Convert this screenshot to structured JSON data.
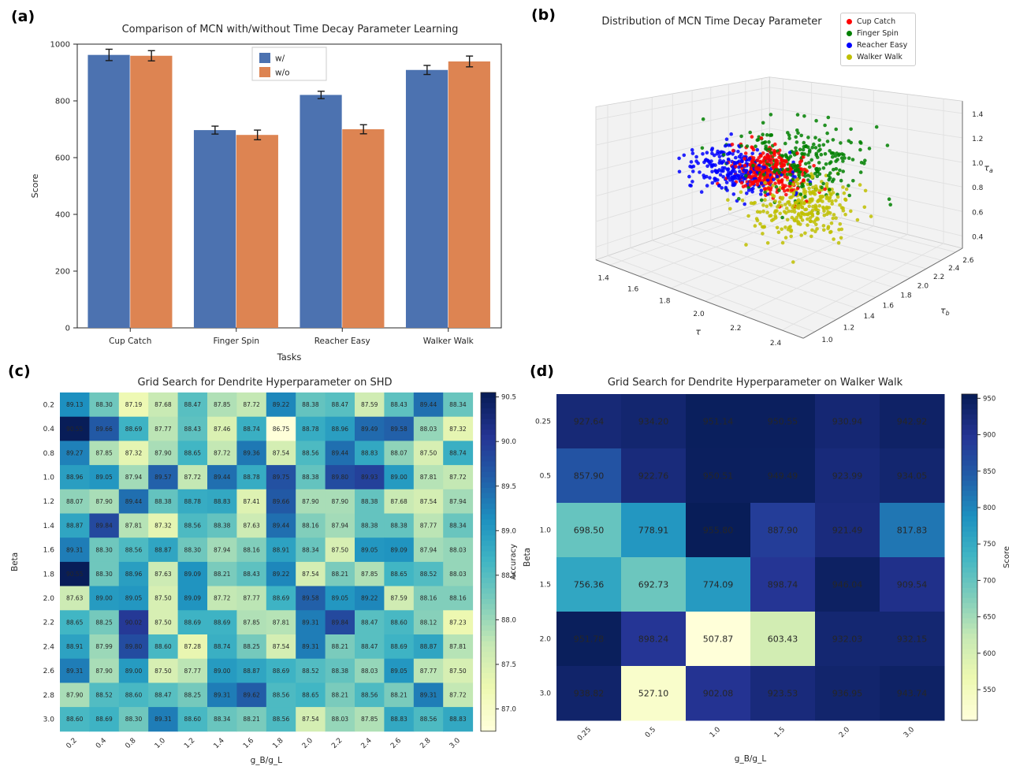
{
  "panels": {
    "a": {
      "label": "(a)"
    },
    "b": {
      "label": "(b)"
    },
    "c": {
      "label": "(c)"
    },
    "d": {
      "label": "(d)"
    }
  },
  "chart_data": [
    {
      "id": "a",
      "type": "bar",
      "title": "Comparison of MCN with/without Time Decay Parameter Learning",
      "categories": [
        "Cup Catch",
        "Finger Spin",
        "Reacher Easy",
        "Walker Walk"
      ],
      "series": [
        {
          "name": "w/",
          "color": "#4C72B0",
          "values": [
            962,
            697,
            821,
            909
          ],
          "errors": [
            20,
            14,
            13,
            16
          ]
        },
        {
          "name": "w/o",
          "color": "#DD8452",
          "values": [
            959,
            680,
            700,
            939
          ],
          "errors": [
            18,
            17,
            16,
            19
          ]
        }
      ],
      "xlabel": "Tasks",
      "ylabel": "Score",
      "ylim": [
        0,
        1000
      ],
      "yticks": [
        0,
        200,
        400,
        600,
        800,
        1000
      ],
      "legend_position": "upper center",
      "grid": false
    },
    {
      "id": "b",
      "type": "scatter3d",
      "title": "Distribution of MCN Time Decay Parameter",
      "x": {
        "label": "τ",
        "ticks": [
          1.4,
          1.6,
          1.8,
          2.0,
          2.2,
          2.4
        ],
        "lim": [
          1.3,
          2.5
        ]
      },
      "y": {
        "label": "τ_b",
        "ticks": [
          1.0,
          1.2,
          1.4,
          1.6,
          1.8,
          2.0,
          2.2,
          2.4,
          2.6
        ],
        "lim": [
          0.9,
          2.7
        ]
      },
      "z": {
        "label": "τ_a",
        "ticks": [
          0.4,
          0.6,
          0.8,
          1.0,
          1.2,
          1.4
        ],
        "lim": [
          0.3,
          1.5
        ]
      },
      "legend_position": "upper right",
      "series": [
        {
          "name": "Cup Catch",
          "color": "#ff0000",
          "n": 280,
          "center": [
            1.83,
            1.78,
            0.95
          ],
          "spread": [
            0.09,
            0.11,
            0.09
          ]
        },
        {
          "name": "Finger Spin",
          "color": "#008000",
          "n": 260,
          "center": [
            1.92,
            1.95,
            1.02
          ],
          "spread": [
            0.16,
            0.2,
            0.13
          ]
        },
        {
          "name": "Reacher Easy",
          "color": "#0000ff",
          "n": 260,
          "center": [
            1.66,
            1.72,
            0.92
          ],
          "spread": [
            0.14,
            0.11,
            0.08
          ]
        },
        {
          "name": "Walker Walk",
          "color": "#bfbf00",
          "n": 280,
          "center": [
            2.02,
            1.82,
            0.72
          ],
          "spread": [
            0.13,
            0.16,
            0.11
          ]
        }
      ]
    },
    {
      "id": "c",
      "type": "heatmap",
      "title": "Grid Search for Dendrite Hyperparameter on SHD",
      "xlabel": "g_B/g_L",
      "ylabel": "Beta",
      "row_labels": [
        "0.2",
        "0.4",
        "0.8",
        "1.0",
        "1.2",
        "1.4",
        "1.6",
        "1.8",
        "2.0",
        "2.2",
        "2.4",
        "2.6",
        "2.8",
        "3.0"
      ],
      "col_labels": [
        "0.2",
        "0.4",
        "0.8",
        "1.0",
        "1.2",
        "1.4",
        "1.6",
        "1.8",
        "2.0",
        "2.2",
        "2.4",
        "2.6",
        "2.8",
        "3.0"
      ],
      "values": [
        [
          89.13,
          88.3,
          87.19,
          87.68,
          88.47,
          87.85,
          87.72,
          89.22,
          88.38,
          88.47,
          87.59,
          88.43,
          89.44,
          88.34
        ],
        [
          90.55,
          89.66,
          88.69,
          87.77,
          88.43,
          87.46,
          88.74,
          86.75,
          88.78,
          88.96,
          89.49,
          89.58,
          88.03,
          87.32
        ],
        [
          89.27,
          87.85,
          87.32,
          87.9,
          88.65,
          87.72,
          89.36,
          87.54,
          88.56,
          89.44,
          88.83,
          88.07,
          87.5,
          88.74
        ],
        [
          88.96,
          89.05,
          87.94,
          89.57,
          87.72,
          89.44,
          88.78,
          89.75,
          88.38,
          89.8,
          89.93,
          89.0,
          87.81,
          87.72
        ],
        [
          88.07,
          87.9,
          89.44,
          88.38,
          88.78,
          88.83,
          87.41,
          89.66,
          87.9,
          87.9,
          88.38,
          87.68,
          87.54,
          87.94
        ],
        [
          88.87,
          89.84,
          87.81,
          87.32,
          88.56,
          88.38,
          87.63,
          89.44,
          88.16,
          87.94,
          88.38,
          88.38,
          87.77,
          88.34
        ],
        [
          89.31,
          88.3,
          88.56,
          88.87,
          88.3,
          87.94,
          88.16,
          88.91,
          88.34,
          87.5,
          89.05,
          89.09,
          87.94,
          88.03
        ],
        [
          90.55,
          88.3,
          88.96,
          87.63,
          89.09,
          88.21,
          88.43,
          89.22,
          87.54,
          88.21,
          87.85,
          88.65,
          88.52,
          88.03
        ],
        [
          87.63,
          89.0,
          89.05,
          87.5,
          89.09,
          87.72,
          87.77,
          88.69,
          89.58,
          89.05,
          89.22,
          87.59,
          88.16,
          88.16
        ],
        [
          88.65,
          88.25,
          90.02,
          87.5,
          88.69,
          88.69,
          87.85,
          87.81,
          89.31,
          89.84,
          88.47,
          88.6,
          88.12,
          87.23
        ],
        [
          88.91,
          87.99,
          89.8,
          88.6,
          87.28,
          88.74,
          88.25,
          87.54,
          89.31,
          88.21,
          88.47,
          88.69,
          88.87,
          87.81
        ],
        [
          89.31,
          87.9,
          89.0,
          87.5,
          87.77,
          89.0,
          88.87,
          88.69,
          88.52,
          88.38,
          88.03,
          89.05,
          87.77,
          87.5
        ],
        [
          87.9,
          88.52,
          88.6,
          88.47,
          88.25,
          89.31,
          89.62,
          88.56,
          88.65,
          88.21,
          88.56,
          88.21,
          89.31,
          87.72
        ],
        [
          88.6,
          88.69,
          88.3,
          89.31,
          88.6,
          88.34,
          88.21,
          88.56,
          87.54,
          88.03,
          87.85,
          88.83,
          88.56,
          88.83
        ]
      ],
      "colorbar": {
        "label": "Accuracy",
        "ticks": [
          "87.0",
          "87.5",
          "88.0",
          "88.5",
          "89.0",
          "89.5",
          "90.0",
          "90.5"
        ]
      },
      "colormap": "YlGnBu"
    },
    {
      "id": "d",
      "type": "heatmap",
      "title": "Grid Search for Dendrite Hyperparameter on Walker Walk",
      "xlabel": "g_B/g_L",
      "ylabel": "Beta",
      "row_labels": [
        "0.25",
        "0.5",
        "1.0",
        "1.5",
        "2.0",
        "3.0"
      ],
      "col_labels": [
        "0.25",
        "0.5",
        "1.0",
        "1.5",
        "2.0",
        "3.0"
      ],
      "values": [
        [
          927.64,
          934.2,
          951.14,
          950.55,
          930.94,
          942.92
        ],
        [
          857.9,
          922.76,
          950.51,
          949.49,
          923.99,
          934.05
        ],
        [
          698.5,
          778.91,
          955.8,
          887.9,
          921.49,
          817.83
        ],
        [
          756.36,
          692.73,
          774.09,
          898.74,
          946.04,
          909.54
        ],
        [
          951.78,
          898.24,
          507.87,
          603.43,
          932.03,
          932.15
        ],
        [
          938.82,
          527.1,
          902.08,
          923.53,
          936.95,
          943.74
        ]
      ],
      "colorbar": {
        "label": "Score",
        "ticks": [
          "550",
          "600",
          "650",
          "700",
          "750",
          "800",
          "850",
          "900",
          "950"
        ]
      },
      "colormap": "YlGnBu"
    }
  ]
}
